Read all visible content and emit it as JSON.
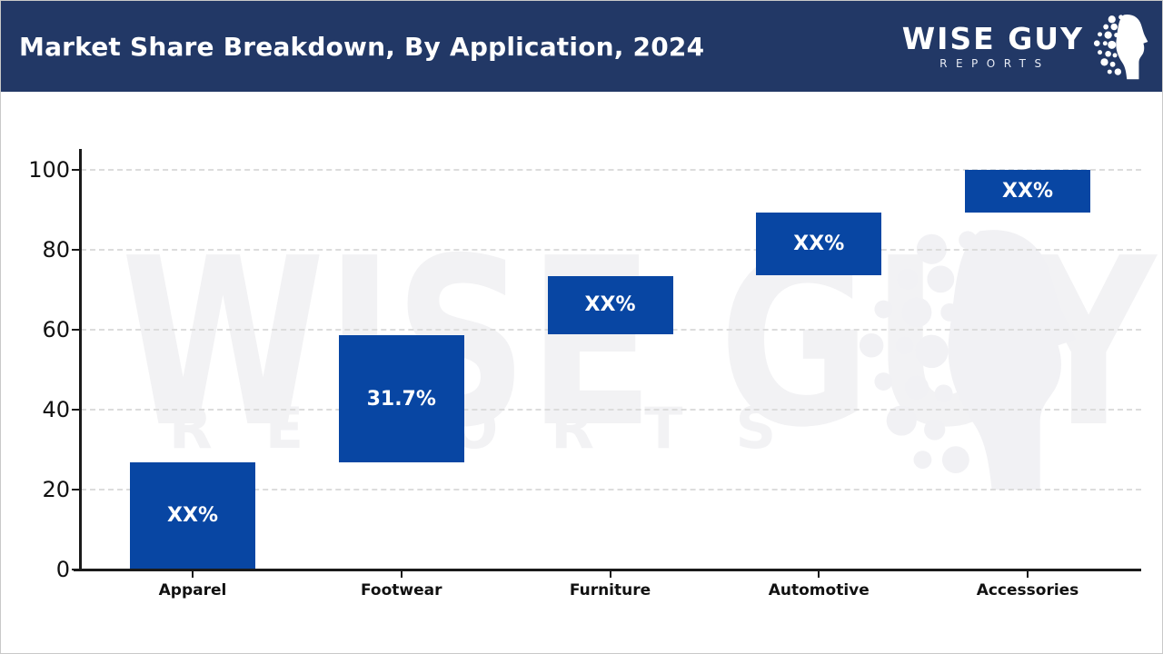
{
  "header": {
    "title": "Market Share Breakdown, By Application, 2024",
    "brand": {
      "name": "WISE GUY",
      "sub": "REPORTS"
    },
    "background_color": "#223866"
  },
  "watermark": {
    "line1": "WISE GUY",
    "line2": "REPORTS"
  },
  "chart_data": {
    "type": "bar",
    "variant": "waterfall",
    "title": "Market Share Breakdown, By Application, 2024",
    "categories": [
      "Apparel",
      "Footwear",
      "Furniture",
      "Automotive",
      "Accessories"
    ],
    "series": [
      {
        "name": "Market share (%)",
        "segments": [
          {
            "category": "Apparel",
            "start": 0,
            "end": 26.8,
            "label": "XX%"
          },
          {
            "category": "Footwear",
            "start": 26.8,
            "end": 58.5,
            "label": "31.7%"
          },
          {
            "category": "Furniture",
            "start": 58.9,
            "end": 73.4,
            "label": "XX%"
          },
          {
            "category": "Automotive",
            "start": 73.6,
            "end": 89.3,
            "label": "XX%"
          },
          {
            "category": "Accessories",
            "start": 89.3,
            "end": 100,
            "label": "XX%"
          }
        ]
      }
    ],
    "xlabel": "",
    "ylabel": "",
    "ylim": [
      0,
      105
    ],
    "yticks": [
      0,
      20,
      40,
      60,
      80,
      100
    ],
    "grid": "horizontal-dashed",
    "legend": "none",
    "bar_color": "#0846a3",
    "bar_label_color": "#ffffff"
  }
}
